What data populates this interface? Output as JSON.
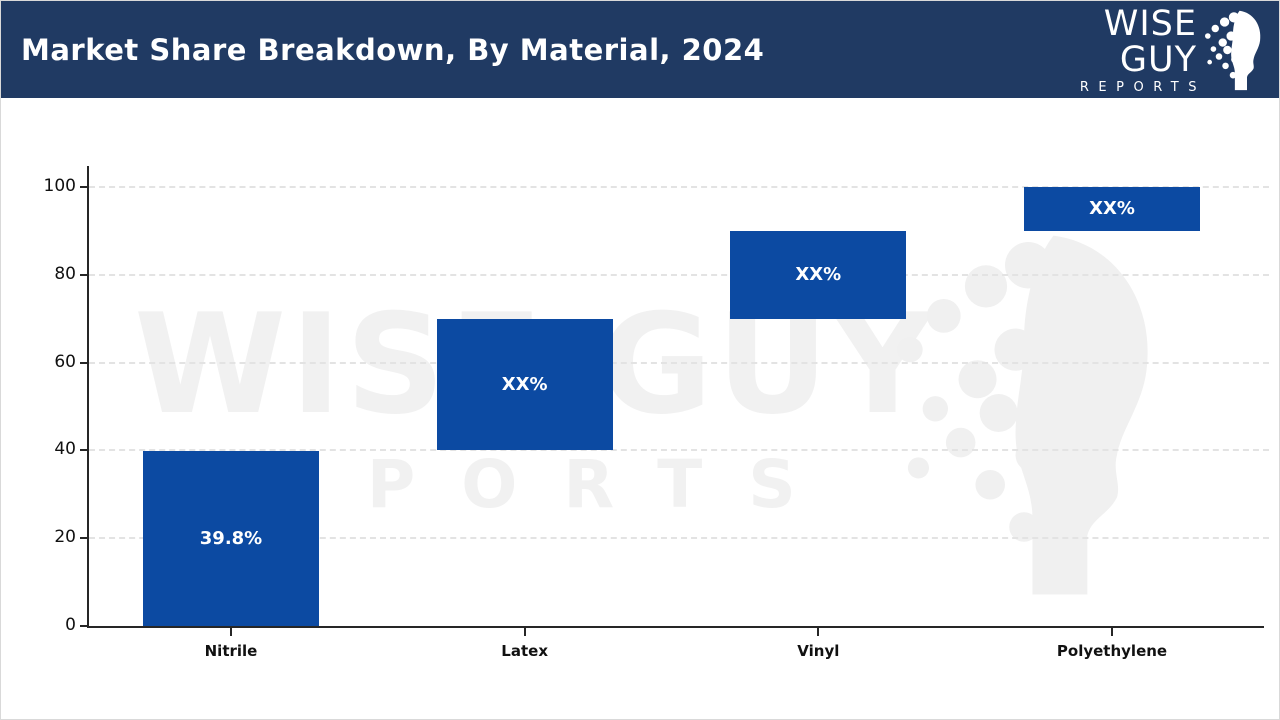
{
  "page": {
    "background": "#ffffff",
    "border_color": "#d9d9d9"
  },
  "header": {
    "title": "Market Share Breakdown, By Material, 2024",
    "background": "#203a63",
    "text_color": "#ffffff",
    "logo": {
      "line1": "WISE GUY",
      "line2": "REPORTS"
    }
  },
  "watermark": {
    "line1": "WISE GUY",
    "line2": "REPORTS",
    "color": "#f1f1f1"
  },
  "chart_data": {
    "type": "bar",
    "subtype": "waterfall",
    "title": "Market Share Breakdown, By Material, 2024",
    "categories": [
      "Nitrile",
      "Latex",
      "Vinyl",
      "Polyethylene"
    ],
    "segments": [
      {
        "category": "Nitrile",
        "start": 0,
        "end": 39.8,
        "label": "39.8%"
      },
      {
        "category": "Latex",
        "start": 40,
        "end": 70,
        "label": "XX%"
      },
      {
        "category": "Vinyl",
        "start": 70,
        "end": 90,
        "label": "XX%"
      },
      {
        "category": "Polyethylene",
        "start": 90,
        "end": 100,
        "label": "XX%"
      }
    ],
    "xlabel": "",
    "ylabel": "",
    "ylim": [
      0,
      100
    ],
    "yticks": [
      0,
      20,
      40,
      60,
      80,
      100
    ],
    "grid": "horizontal-dashed",
    "legend": "none",
    "bar_color": "#0c4aa2",
    "bar_label_color": "#ffffff",
    "axis_color": "#262626",
    "gridline_color": "#e3e3e3"
  }
}
